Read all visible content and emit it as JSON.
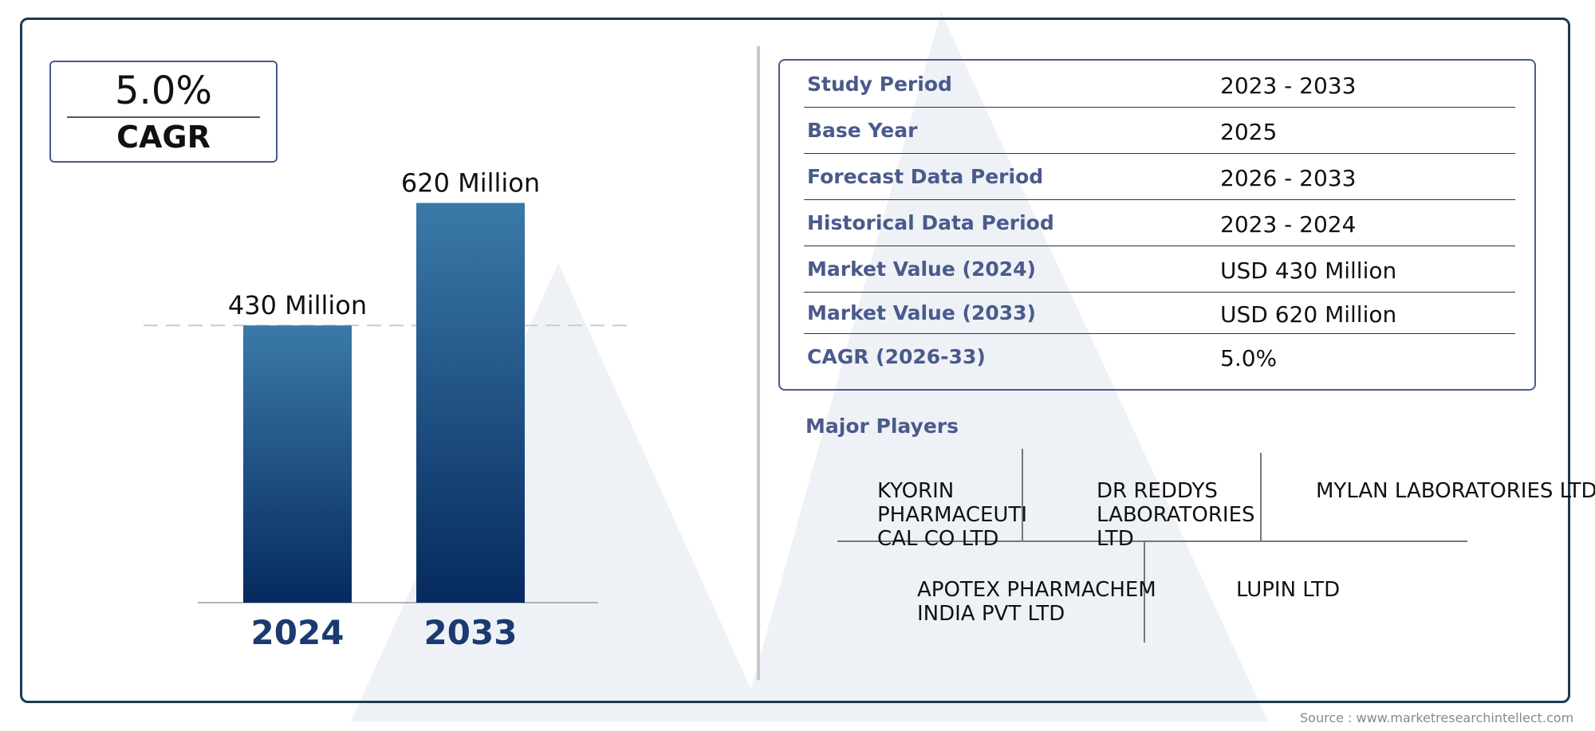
{
  "colors": {
    "frame": "#1b3a52",
    "label_blue": "#4a5a8c",
    "bar_top": "#3a7aa8",
    "bar_bottom": "#062a60",
    "year_label": "#1a3a70",
    "watermark": "#eef2f6"
  },
  "cagr": {
    "value": "5.0%",
    "label": "CAGR"
  },
  "chart_data": {
    "type": "bar",
    "categories": [
      "2024",
      "2033"
    ],
    "values": [
      430,
      620
    ],
    "value_labels": [
      "430 Million",
      "620 Million"
    ],
    "ylim": [
      0,
      700
    ],
    "title": "",
    "xlabel": "",
    "ylabel": "",
    "grid": false,
    "reference_line": 430
  },
  "table": [
    {
      "label": "Study Period",
      "value": "2023 - 2033"
    },
    {
      "label": "Base Year",
      "value": "2025"
    },
    {
      "label": "Forecast Data Period",
      "value": "2026 - 2033"
    },
    {
      "label": "Historical Data Period",
      "value": "2023 - 2024"
    },
    {
      "label": "Market Value (2024)",
      "value": "USD 430 Million"
    },
    {
      "label": "Market Value (2033)",
      "value": "USD 620 Million"
    },
    {
      "label": "CAGR (2026-33)",
      "value": "5.0%"
    }
  ],
  "players": {
    "title": "Major Players",
    "items": [
      "KYORIN\nPHARMACEUTI\nCAL CO LTD",
      "DR REDDYS\nLABORATORIES\nLTD",
      "MYLAN LABORATORIES LTD",
      "APOTEX PHARMACHEM\nINDIA PVT LTD",
      "LUPIN LTD"
    ]
  },
  "source": "Source : www.marketresearchintellect.com"
}
